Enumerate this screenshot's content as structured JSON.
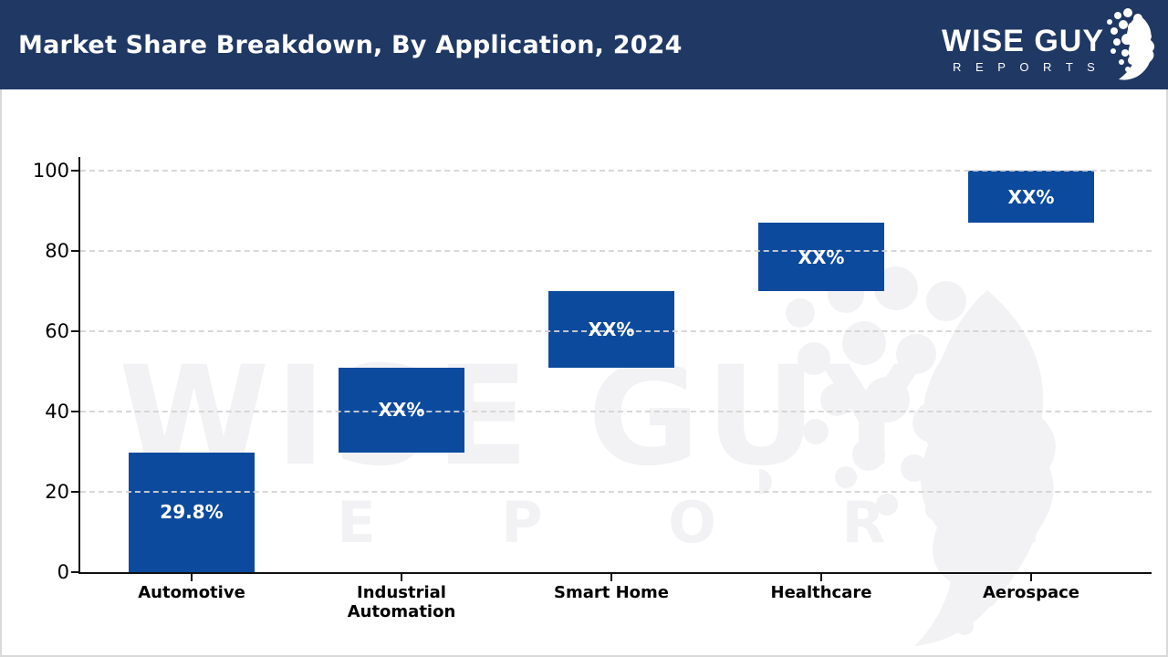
{
  "header": {
    "title": "Market Share Breakdown, By Application, 2024",
    "logo": {
      "line1": "WISE GUY",
      "line2": "R E P O R T S"
    }
  },
  "watermark": {
    "line1": "WISE GUY",
    "line2": "R E P O R T S"
  },
  "colors": {
    "header_bg": "#203864",
    "bar": "#0c4a9e",
    "grid": "#d4d4d4",
    "watermark": "#f2f2f4",
    "bar_label_text": "#ffffff"
  },
  "chart_data": {
    "type": "bar",
    "subtype": "waterfall-floating-bars",
    "title": "Market Share Breakdown, By Application, 2024",
    "categories": [
      "Automotive",
      "Industrial Automation",
      "Smart Home",
      "Healthcare",
      "Aerospace"
    ],
    "segments": [
      [
        0,
        29.8
      ],
      [
        29.8,
        51
      ],
      [
        51,
        70
      ],
      [
        70,
        87
      ],
      [
        87,
        100
      ]
    ],
    "values": [
      29.8,
      21.2,
      19,
      17,
      13
    ],
    "bar_labels": [
      "29.8%",
      "XX%",
      "XX%",
      "XX%",
      "XX%"
    ],
    "xlabel": "",
    "ylabel": "",
    "yticks": [
      0,
      20,
      40,
      60,
      80,
      100
    ],
    "ylim": [
      0,
      100
    ],
    "grid": "horizontal-dashed",
    "legend": "none"
  }
}
